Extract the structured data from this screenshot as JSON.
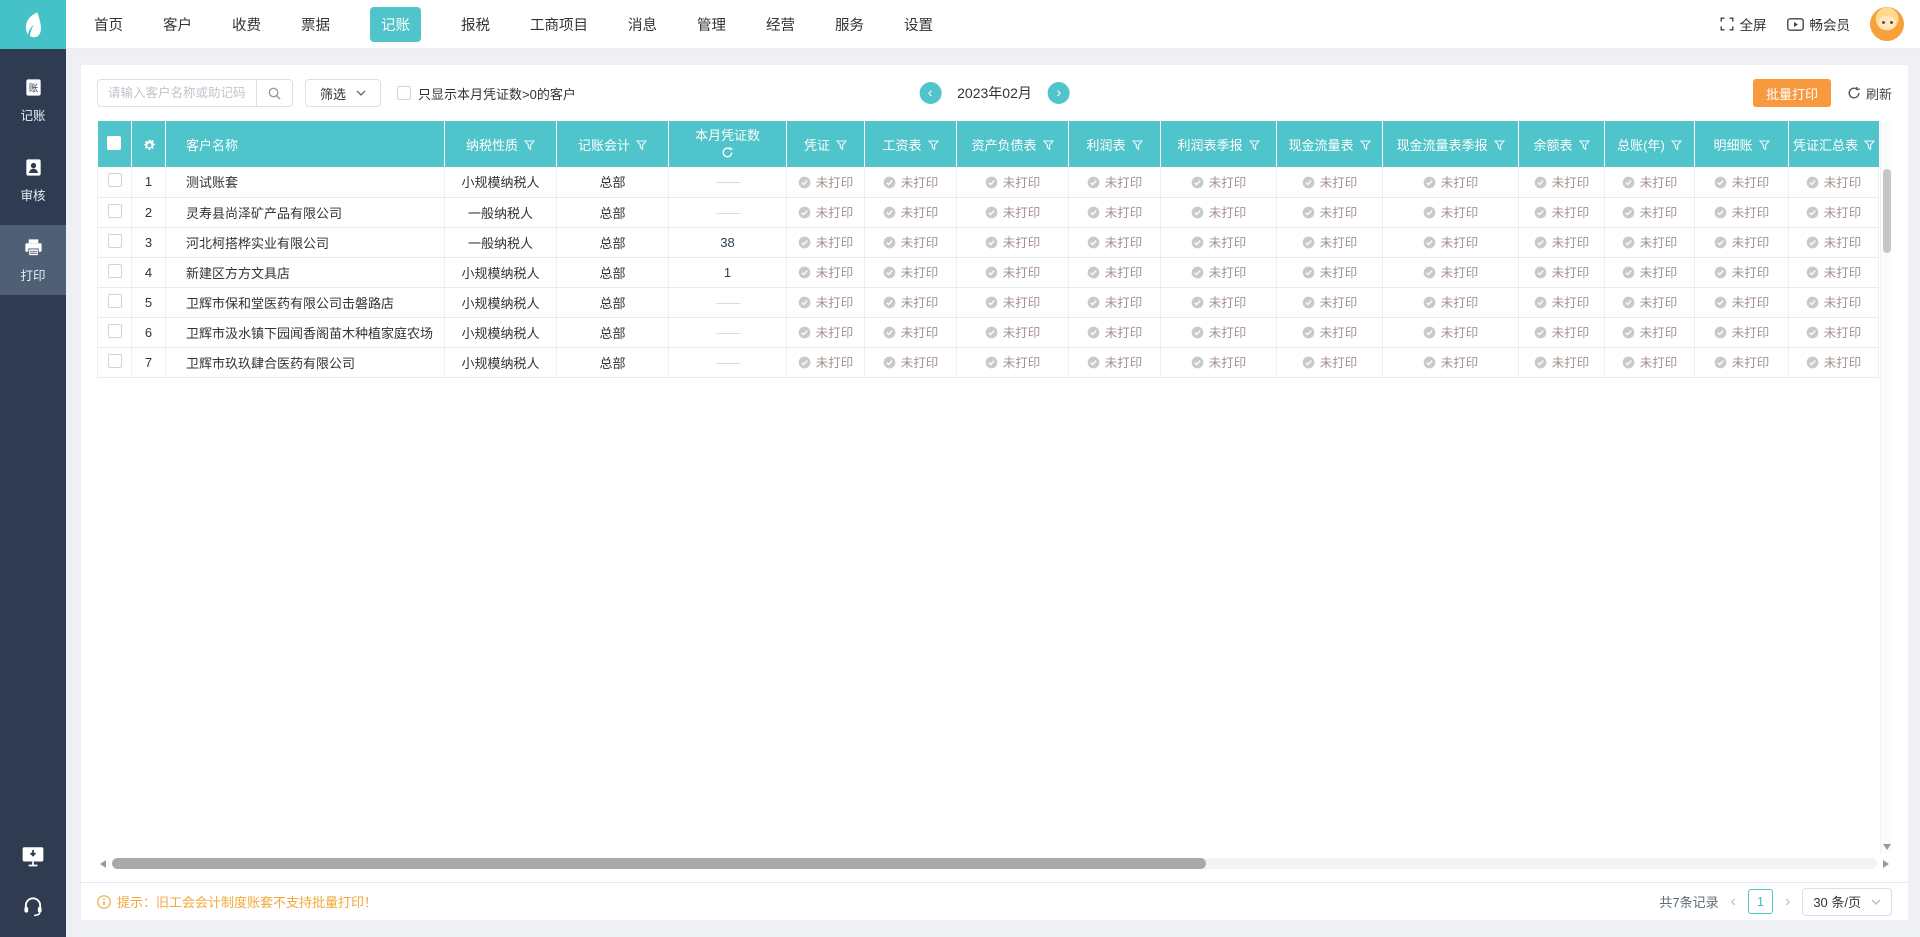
{
  "colors": {
    "brand_teal": "#4fc4ca",
    "sidebar_navy": "#2f3b50",
    "sidebar_active": "#4f6076",
    "accent_orange": "#f6993f",
    "hint_orange": "#f2a83c",
    "status_text_gray": "#a2918e",
    "page_number_teal": "#53c6cc"
  },
  "topnav": {
    "items": [
      "首页",
      "客户",
      "收费",
      "票据",
      "记账",
      "报税",
      "工商项目",
      "消息",
      "管理",
      "经营",
      "服务",
      "设置"
    ],
    "active": "记账",
    "fullscreen_label": "全屏",
    "member_label": "畅会员"
  },
  "sidebar": {
    "items": [
      {
        "label": "记账",
        "icon": "ledger-icon",
        "active": false
      },
      {
        "label": "审核",
        "icon": "audit-icon",
        "active": false
      },
      {
        "label": "打印",
        "icon": "printer-icon",
        "active": true
      }
    ]
  },
  "toolbar": {
    "search_placeholder": "请输入客户名称或助记码",
    "filter_label": "筛选",
    "only_voucher_label": "只显示本月凭证数>0的客户",
    "month_label": "2023年02月",
    "batch_print_label": "批量打印",
    "refresh_label": "刷新"
  },
  "table": {
    "columns": [
      {
        "label": "客户名称",
        "icon": null
      },
      {
        "label": "纳税性质",
        "icon": "filter"
      },
      {
        "label": "记账会计",
        "icon": "filter"
      },
      {
        "label": "本月凭证数",
        "icon": "refresh"
      },
      {
        "label": "凭证",
        "icon": "filter"
      },
      {
        "label": "工资表",
        "icon": "filter"
      },
      {
        "label": "资产负债表",
        "icon": "filter"
      },
      {
        "label": "利润表",
        "icon": "filter"
      },
      {
        "label": "利润表季报",
        "icon": "filter"
      },
      {
        "label": "现金流量表",
        "icon": "filter"
      },
      {
        "label": "现金流量表季报",
        "icon": "filter"
      },
      {
        "label": "余额表",
        "icon": "filter"
      },
      {
        "label": "总账(年)",
        "icon": "filter"
      },
      {
        "label": "明细账",
        "icon": "filter"
      },
      {
        "label": "凭证汇总表",
        "icon": "filter"
      }
    ],
    "status_label": "未打印",
    "empty_count": "——",
    "rows": [
      {
        "index": "1",
        "name": "测试账套",
        "tax_type": "小规模纳税人",
        "accountant": "总部",
        "voucher_count": ""
      },
      {
        "index": "2",
        "name": "灵寿县尚泽矿产品有限公司",
        "tax_type": "一般纳税人",
        "accountant": "总部",
        "voucher_count": ""
      },
      {
        "index": "3",
        "name": "河北柯搭桦实业有限公司",
        "tax_type": "一般纳税人",
        "accountant": "总部",
        "voucher_count": "38"
      },
      {
        "index": "4",
        "name": "新建区方方文具店",
        "tax_type": "小规模纳税人",
        "accountant": "总部",
        "voucher_count": "1"
      },
      {
        "index": "5",
        "name": "卫辉市保和堂医药有限公司击磐路店",
        "tax_type": "小规模纳税人",
        "accountant": "总部",
        "voucher_count": ""
      },
      {
        "index": "6",
        "name": "卫辉市汲水镇下园闻香阁苗木种植家庭农场",
        "tax_type": "小规模纳税人",
        "accountant": "总部",
        "voucher_count": ""
      },
      {
        "index": "7",
        "name": "卫辉市玖玖肆合医药有限公司",
        "tax_type": "小规模纳税人",
        "accountant": "总部",
        "voucher_count": ""
      }
    ]
  },
  "footer": {
    "hint": "提示：旧工会会计制度账套不支持批量打印！",
    "total_label": "共7条记录",
    "current_page": "1",
    "page_size_label": "30 条/页"
  }
}
